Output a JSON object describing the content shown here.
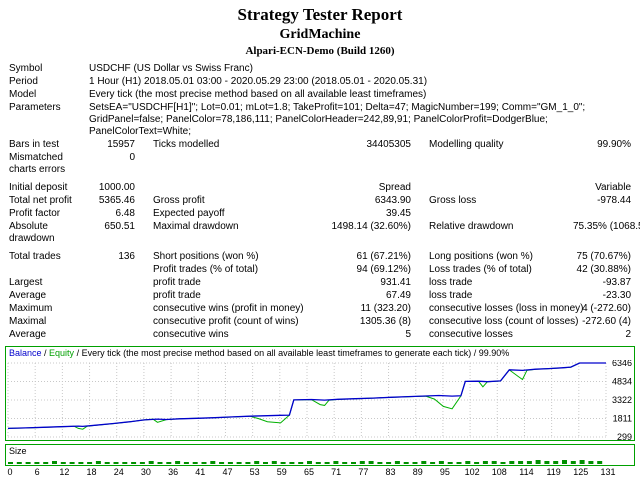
{
  "header": {
    "title": "Strategy Tester Report",
    "ea_name": "GridMachine",
    "server": "Alpari-ECN-Demo (Build 1260)"
  },
  "report": {
    "rows": [
      {
        "cells": [
          {
            "col": 0,
            "text": "Symbol"
          },
          {
            "col": 1,
            "span": 5,
            "text": "USDCHF (US Dollar vs Swiss Franc)"
          }
        ]
      },
      {
        "cells": [
          {
            "col": 0,
            "text": "Period"
          },
          {
            "col": 1,
            "span": 5,
            "text": "1 Hour (H1) 2018.05.01 03:00 - 2020.05.29 23:00 (2018.05.01 - 2020.05.31)"
          }
        ]
      },
      {
        "cells": [
          {
            "col": 0,
            "text": "Model"
          },
          {
            "col": 1,
            "span": 5,
            "text": "Every tick (the most precise method based on all available least timeframes)"
          }
        ]
      },
      {
        "cells": [
          {
            "col": 0,
            "text": "Parameters"
          },
          {
            "col": 1,
            "span": 5,
            "text": "SetsEA=\"USDCHF[H1]\"; Lot=0.01; mLot=1.8; TakeProfit=101; Delta=47; MagicNumber=199; Comm=\"GM_1_0\"; GridPanel=false; PanelColor=78,186,111; PanelColorHeader=242,89,91; PanelColorProfit=DodgerBlue; PanelColorText=White;"
          }
        ]
      },
      {
        "cells": [
          {
            "col": 0,
            "text": "Bars in test"
          },
          {
            "col": 1,
            "text": "15957"
          },
          {
            "col": 2,
            "text": "Ticks modelled"
          },
          {
            "col": 3,
            "text": "34405305"
          },
          {
            "col": 4,
            "text": "Modelling quality"
          },
          {
            "col": 5,
            "text": "99.90%"
          }
        ]
      },
      {
        "cells": [
          {
            "col": 0,
            "text": "Mismatched charts errors"
          },
          {
            "col": 1,
            "text": "0"
          }
        ]
      },
      {
        "spacer": true
      },
      {
        "cells": [
          {
            "col": 0,
            "text": "Initial deposit"
          },
          {
            "col": 1,
            "text": "1000.00"
          },
          {
            "col": 3,
            "text": "Spread"
          },
          {
            "col": 5,
            "text": "Variable"
          }
        ]
      },
      {
        "cells": [
          {
            "col": 0,
            "text": "Total net profit"
          },
          {
            "col": 1,
            "text": "5365.46"
          },
          {
            "col": 2,
            "text": "Gross profit"
          },
          {
            "col": 3,
            "text": "6343.90"
          },
          {
            "col": 4,
            "text": "Gross loss"
          },
          {
            "col": 5,
            "text": "-978.44"
          }
        ]
      },
      {
        "cells": [
          {
            "col": 0,
            "text": "Profit factor"
          },
          {
            "col": 1,
            "text": "6.48"
          },
          {
            "col": 2,
            "text": "Expected payoff"
          },
          {
            "col": 3,
            "text": "39.45"
          }
        ]
      },
      {
        "cells": [
          {
            "col": 0,
            "text": "Absolute drawdown"
          },
          {
            "col": 1,
            "text": "650.51"
          },
          {
            "col": 2,
            "text": "Maximal drawdown"
          },
          {
            "col": 3,
            "text": "1498.14 (32.60%)"
          },
          {
            "col": 4,
            "text": "Relative drawdown"
          },
          {
            "col": 5,
            "text": "75.35% (1068.58)"
          }
        ]
      },
      {
        "spacer": true
      },
      {
        "cells": [
          {
            "col": 0,
            "text": "Total trades"
          },
          {
            "col": 1,
            "text": "136"
          },
          {
            "col": 2,
            "text": "Short positions (won %)"
          },
          {
            "col": 3,
            "text": "61 (67.21%)"
          },
          {
            "col": 4,
            "text": "Long positions (won %)"
          },
          {
            "col": 5,
            "text": "75 (70.67%)"
          }
        ]
      },
      {
        "cells": [
          {
            "col": 2,
            "text": "Profit trades (% of total)"
          },
          {
            "col": 3,
            "text": "94 (69.12%)"
          },
          {
            "col": 4,
            "text": "Loss trades (% of total)"
          },
          {
            "col": 5,
            "text": "42 (30.88%)"
          }
        ]
      },
      {
        "cells": [
          {
            "col": 0,
            "text": "Largest"
          },
          {
            "col": 2,
            "text": "profit trade"
          },
          {
            "col": 3,
            "text": "931.41"
          },
          {
            "col": 4,
            "text": "loss trade"
          },
          {
            "col": 5,
            "text": "-93.87"
          }
        ]
      },
      {
        "cells": [
          {
            "col": 0,
            "text": "Average"
          },
          {
            "col": 2,
            "text": "profit trade"
          },
          {
            "col": 3,
            "text": "67.49"
          },
          {
            "col": 4,
            "text": "loss trade"
          },
          {
            "col": 5,
            "text": "-23.30"
          }
        ]
      },
      {
        "cells": [
          {
            "col": 0,
            "text": "Maximum"
          },
          {
            "col": 2,
            "text": "consecutive wins (profit in money)"
          },
          {
            "col": 3,
            "text": "11 (323.20)"
          },
          {
            "col": 4,
            "text": "consecutive losses (loss in money)"
          },
          {
            "col": 5,
            "text": "4 (-272.60)"
          }
        ]
      },
      {
        "cells": [
          {
            "col": 0,
            "text": "Maximal"
          },
          {
            "col": 2,
            "text": "consecutive profit (count of wins)"
          },
          {
            "col": 3,
            "text": "1305.36 (8)"
          },
          {
            "col": 4,
            "text": "consecutive loss (count of losses)"
          },
          {
            "col": 5,
            "text": "-272.60 (4)"
          }
        ]
      },
      {
        "cells": [
          {
            "col": 0,
            "text": "Average"
          },
          {
            "col": 2,
            "text": "consecutive wins"
          },
          {
            "col": 3,
            "text": "5"
          },
          {
            "col": 4,
            "text": "consecutive losses"
          },
          {
            "col": 5,
            "text": "2"
          }
        ]
      }
    ]
  },
  "chart_data": {
    "type": "line",
    "legend": [
      {
        "text": "Balance",
        "color": "#0000cc"
      },
      {
        "text": " / ",
        "color": "#000000"
      },
      {
        "text": "Equity",
        "color": "#00a000"
      },
      {
        "text": " / Every tick (the most precise method based on all available least timeframes to generate each tick) / 99.90%",
        "color": "#000000"
      }
    ],
    "y_ticks": [
      6346,
      4834,
      3322,
      1811,
      299
    ],
    "x_ticks": [
      0,
      6,
      12,
      18,
      24,
      30,
      36,
      41,
      47,
      53,
      59,
      65,
      71,
      77,
      83,
      89,
      95,
      102,
      108,
      114,
      119,
      125,
      131
    ],
    "ylim": [
      299,
      6346
    ],
    "xlim": [
      0,
      136
    ],
    "grid": true,
    "series": [
      {
        "name": "Equity",
        "color": "#00b000",
        "points": [
          [
            0,
            1000
          ],
          [
            4,
            1035
          ],
          [
            8,
            1085
          ],
          [
            12,
            1135
          ],
          [
            15,
            1180
          ],
          [
            16,
            1000
          ],
          [
            17,
            940
          ],
          [
            18,
            1180
          ],
          [
            20,
            1255
          ],
          [
            24,
            1395
          ],
          [
            28,
            1555
          ],
          [
            31,
            1695
          ],
          [
            33,
            1750
          ],
          [
            34,
            1500
          ],
          [
            36,
            1720
          ],
          [
            39,
            1785
          ],
          [
            43,
            1825
          ],
          [
            47,
            1875
          ],
          [
            51,
            1935
          ],
          [
            55,
            1995
          ],
          [
            57,
            1800
          ],
          [
            59,
            1550
          ],
          [
            62,
            1450
          ],
          [
            64,
            2085
          ],
          [
            65,
            3325
          ],
          [
            69,
            3355
          ],
          [
            71,
            2950
          ],
          [
            72,
            2880
          ],
          [
            73,
            3310
          ],
          [
            75,
            3375
          ],
          [
            79,
            3425
          ],
          [
            83,
            3475
          ],
          [
            87,
            3535
          ],
          [
            91,
            3595
          ],
          [
            95,
            3645
          ],
          [
            97,
            3400
          ],
          [
            99,
            2800
          ],
          [
            101,
            2600
          ],
          [
            103,
            3660
          ],
          [
            104,
            4835
          ],
          [
            107,
            4855
          ],
          [
            108,
            4400
          ],
          [
            109,
            4810
          ],
          [
            112,
            4875
          ],
          [
            114,
            5785
          ],
          [
            116,
            5250
          ],
          [
            117,
            5000
          ],
          [
            118,
            5740
          ],
          [
            120,
            5835
          ],
          [
            123,
            5885
          ],
          [
            126,
            5945
          ],
          [
            128,
            6005
          ],
          [
            130,
            6346
          ],
          [
            136,
            6346
          ]
        ]
      },
      {
        "name": "Balance",
        "color": "#0000cc",
        "points": [
          [
            0,
            1000
          ],
          [
            4,
            1040
          ],
          [
            8,
            1090
          ],
          [
            12,
            1140
          ],
          [
            16,
            1190
          ],
          [
            17,
            1165
          ],
          [
            20,
            1260
          ],
          [
            24,
            1400
          ],
          [
            28,
            1560
          ],
          [
            31,
            1700
          ],
          [
            34,
            1760
          ],
          [
            36,
            1725
          ],
          [
            39,
            1790
          ],
          [
            43,
            1830
          ],
          [
            47,
            1880
          ],
          [
            51,
            1940
          ],
          [
            55,
            2000
          ],
          [
            59,
            2040
          ],
          [
            62,
            2070
          ],
          [
            64,
            2090
          ],
          [
            65,
            3330
          ],
          [
            69,
            3360
          ],
          [
            72,
            3315
          ],
          [
            75,
            3380
          ],
          [
            79,
            3430
          ],
          [
            83,
            3480
          ],
          [
            87,
            3540
          ],
          [
            91,
            3600
          ],
          [
            95,
            3650
          ],
          [
            98,
            3690
          ],
          [
            101,
            3645
          ],
          [
            103,
            3665
          ],
          [
            104,
            4840
          ],
          [
            107,
            4860
          ],
          [
            109,
            4815
          ],
          [
            112,
            4880
          ],
          [
            114,
            5790
          ],
          [
            117,
            5745
          ],
          [
            120,
            5840
          ],
          [
            123,
            5890
          ],
          [
            126,
            5950
          ],
          [
            128,
            6010
          ],
          [
            130,
            6346
          ],
          [
            136,
            6346
          ]
        ]
      }
    ]
  },
  "size_chart": {
    "label": "Size",
    "bar_color": "#009000",
    "bars": [
      2,
      2,
      2,
      2,
      2,
      3,
      2,
      2,
      2,
      2,
      3,
      2,
      2,
      2,
      2,
      2,
      3,
      2,
      2,
      3,
      2,
      2,
      2,
      3,
      2,
      2,
      2,
      2,
      3,
      2,
      3,
      2,
      2,
      2,
      3,
      2,
      2,
      3,
      2,
      2,
      3,
      3,
      2,
      2,
      3,
      2,
      2,
      3,
      2,
      3,
      2,
      2,
      3,
      2,
      3,
      3,
      2,
      3,
      3,
      3,
      4,
      3,
      3,
      4,
      3,
      4,
      3,
      3
    ]
  },
  "colors": {
    "chart_border": "#00a000",
    "grid": "#c8c8c8"
  }
}
